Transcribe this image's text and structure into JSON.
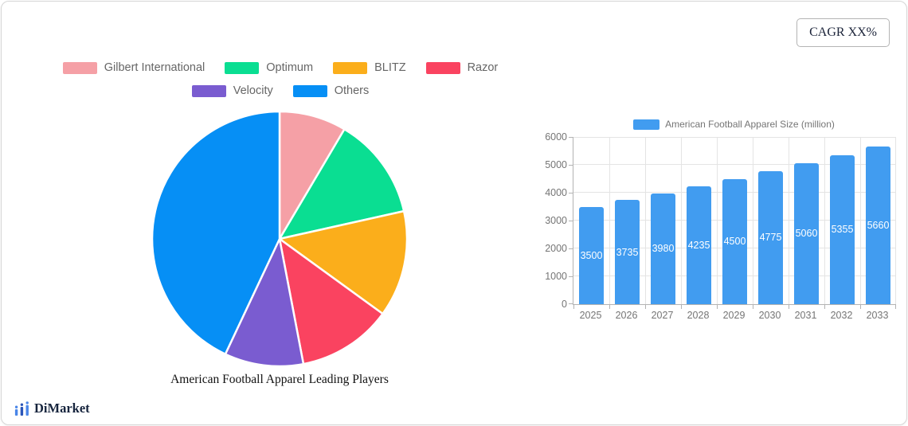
{
  "card": {
    "cagr_badge": "CAGR XX%"
  },
  "logo": {
    "brand": "DiMarket"
  },
  "colors": {
    "bar_blue": "#419cf0",
    "axis_line": "#b3b3b3",
    "gridline": "#e4e4e4",
    "axis_text": "#757575",
    "legend_text": "#666666"
  },
  "chart_data": [
    {
      "type": "pie",
      "title": "American Football Apparel Leading Players",
      "legend_position": "top",
      "start_angle_deg": -90,
      "direction": "clockwise",
      "series": [
        {
          "name": "Gilbert International",
          "value": 8.5,
          "color": "#F5A0A6"
        },
        {
          "name": "Optimum",
          "value": 13,
          "color": "#0ADE92"
        },
        {
          "name": "BLITZ",
          "value": 13.5,
          "color": "#FBAE1B"
        },
        {
          "name": "Razor",
          "value": 12,
          "color": "#FA4360"
        },
        {
          "name": "Velocity",
          "value": 10,
          "color": "#7A5CD0"
        },
        {
          "name": "Others",
          "value": 43,
          "color": "#068FF5"
        }
      ]
    },
    {
      "type": "bar",
      "legend": "American Football Apparel Size (million)",
      "categories": [
        "2025",
        "2026",
        "2027",
        "2028",
        "2029",
        "2030",
        "2031",
        "2032",
        "2033"
      ],
      "values": [
        3500,
        3735,
        3980,
        4235,
        4500,
        4775,
        5060,
        5355,
        5660
      ],
      "bar_color": "#419cf0",
      "value_label_color": "#ffffff",
      "ylim": [
        0,
        6000
      ],
      "yticks": [
        0,
        1000,
        2000,
        3000,
        4000,
        5000,
        6000
      ],
      "grid": true,
      "legend_position": "top"
    }
  ]
}
